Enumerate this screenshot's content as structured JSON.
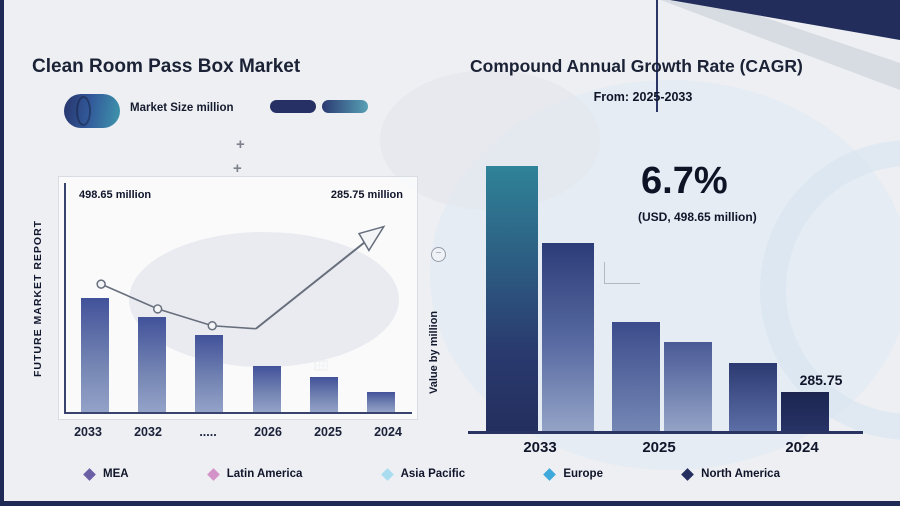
{
  "left_panel": {
    "title": "Clean Room Pass Box  Market",
    "market_size_label": "Market Size million",
    "value_left": "498.65 million",
    "value_right": "285.75 million",
    "y_axis_label": "FUTURE MARKET REPORT"
  },
  "right_panel": {
    "title": "Compound Annual Growth Rate (CAGR)",
    "subtitle": "From: 2025-2033",
    "cagr": "6.7%",
    "cagr_detail": "(USD, 498.65 million)",
    "y_axis_label": "Value by million",
    "end_value_label": "285.75"
  },
  "legend": {
    "items": [
      {
        "label": "MEA",
        "color": "#6b5fa5"
      },
      {
        "label": "Latin America",
        "color": "#d393c8"
      },
      {
        "label": "Asia Pacific",
        "color": "#aadcf0"
      },
      {
        "label": "Europe",
        "color": "#3fa9dc"
      },
      {
        "label": "North America",
        "color": "#252e5e"
      }
    ]
  },
  "colors": {
    "navy": "#1e2a55",
    "teal": "#3f96ac",
    "text_dark": "#10152a"
  },
  "chart_data": [
    {
      "type": "bar",
      "title": "Clean Room Pass Box Market - Market Size million",
      "categories": [
        "2033",
        "2032",
        ".....",
        "2026",
        "2025",
        "2024"
      ],
      "values": [
        498.65,
        455,
        415,
        345,
        318,
        285.75
      ],
      "unit": "million",
      "xlabel": "",
      "ylabel": "FUTURE MARKET REPORT",
      "annotations": [
        "498.65 million",
        "285.75 million"
      ],
      "overlay": "declining marker line with rising outline arrow",
      "grid": false,
      "legend_position": "none"
    },
    {
      "type": "bar",
      "title": "Compound Annual Growth Rate (CAGR)",
      "subtitle": "From: 2025-2033",
      "categories": [
        "2033",
        "2025",
        "2024"
      ],
      "series": [
        {
          "name": "series-1",
          "values": [
            498.65,
            205,
            128
          ]
        },
        {
          "name": "series-2",
          "values": [
            354,
            167,
            73
          ]
        }
      ],
      "xlabel": "",
      "ylabel": "Value by million",
      "annotations": [
        "6.7%",
        "(USD, 498.65 million)",
        "285.75"
      ],
      "grid": false,
      "legend_position": "none"
    }
  ]
}
